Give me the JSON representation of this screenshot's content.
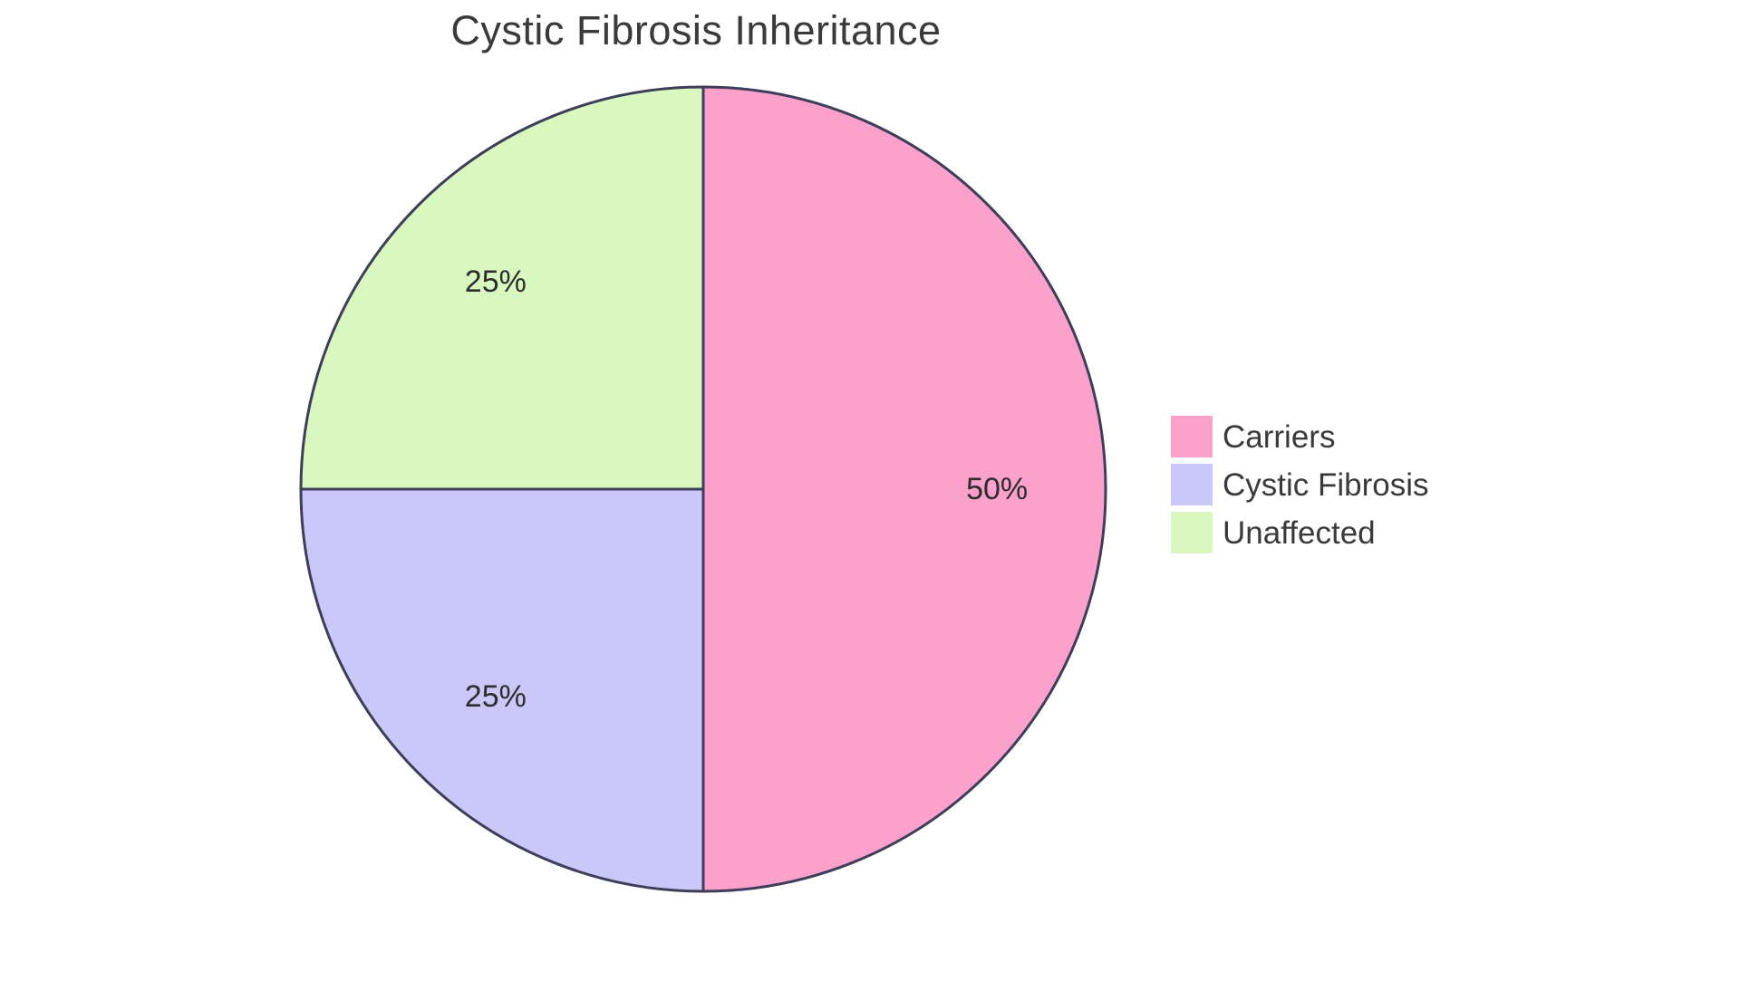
{
  "chart_data": {
    "type": "pie",
    "title": "Cystic Fibrosis Inheritance",
    "labels": [
      "Carriers",
      "Cystic Fibrosis",
      "Unaffected"
    ],
    "values": [
      50,
      25,
      25
    ],
    "slice_labels": [
      "50%",
      "25%",
      "25%"
    ],
    "colors": [
      "#FBA1CB",
      "#C9C8F8",
      "#D9F8BF"
    ],
    "stroke_color": "#3E3E5A",
    "stroke_width": 3,
    "direction": "clockwise",
    "start_angle": "top",
    "legend_position": "right",
    "legend_entries": [
      "Carriers",
      "Cystic Fibrosis",
      "Unaffected"
    ],
    "title_color": "#3A3A3A",
    "label_color": "#2D2D2D",
    "background": "#FFFFFF",
    "grid": false
  }
}
